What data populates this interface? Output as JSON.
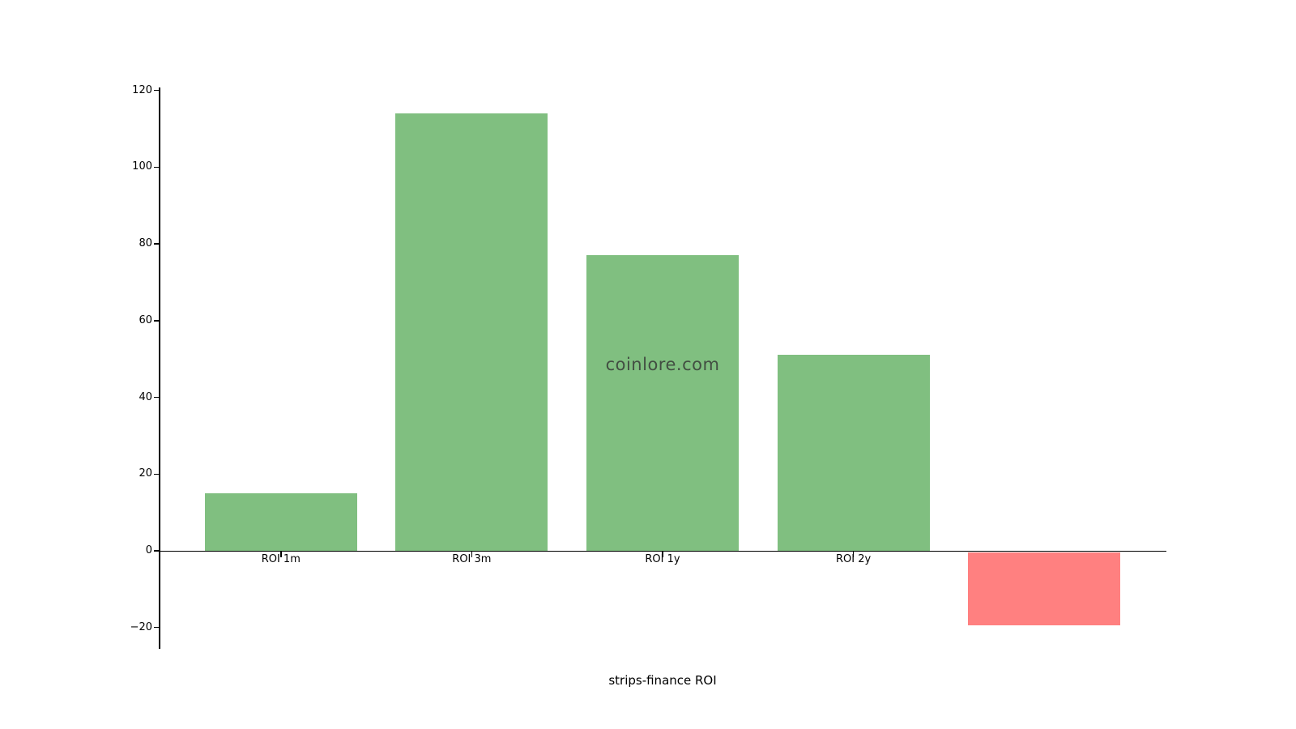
{
  "chart_data": {
    "type": "bar",
    "title": "strips-finance ROI",
    "watermark": "coinlore.com",
    "categories": [
      "ROI 1m",
      "ROI 3m",
      "ROI 1y",
      "ROI 2y",
      ""
    ],
    "values": [
      15,
      114,
      77,
      51,
      -19
    ],
    "bar_colors": [
      "#80bf80",
      "#80bf80",
      "#80bf80",
      "#80bf80",
      "#ff8080"
    ],
    "positive_color": "#80bf80",
    "negative_color": "#ff8080",
    "xlabel": "strips-finance ROI",
    "ylabel": "",
    "yticks": [
      -20,
      0,
      20,
      40,
      60,
      80,
      100,
      120
    ],
    "ytick_labels": [
      "−20",
      "0",
      "20",
      "40",
      "60",
      "80",
      "100",
      "120"
    ],
    "ylim": [
      -25.65,
      120.65
    ],
    "grid": false,
    "legend": null,
    "axis_color": "#000000"
  }
}
